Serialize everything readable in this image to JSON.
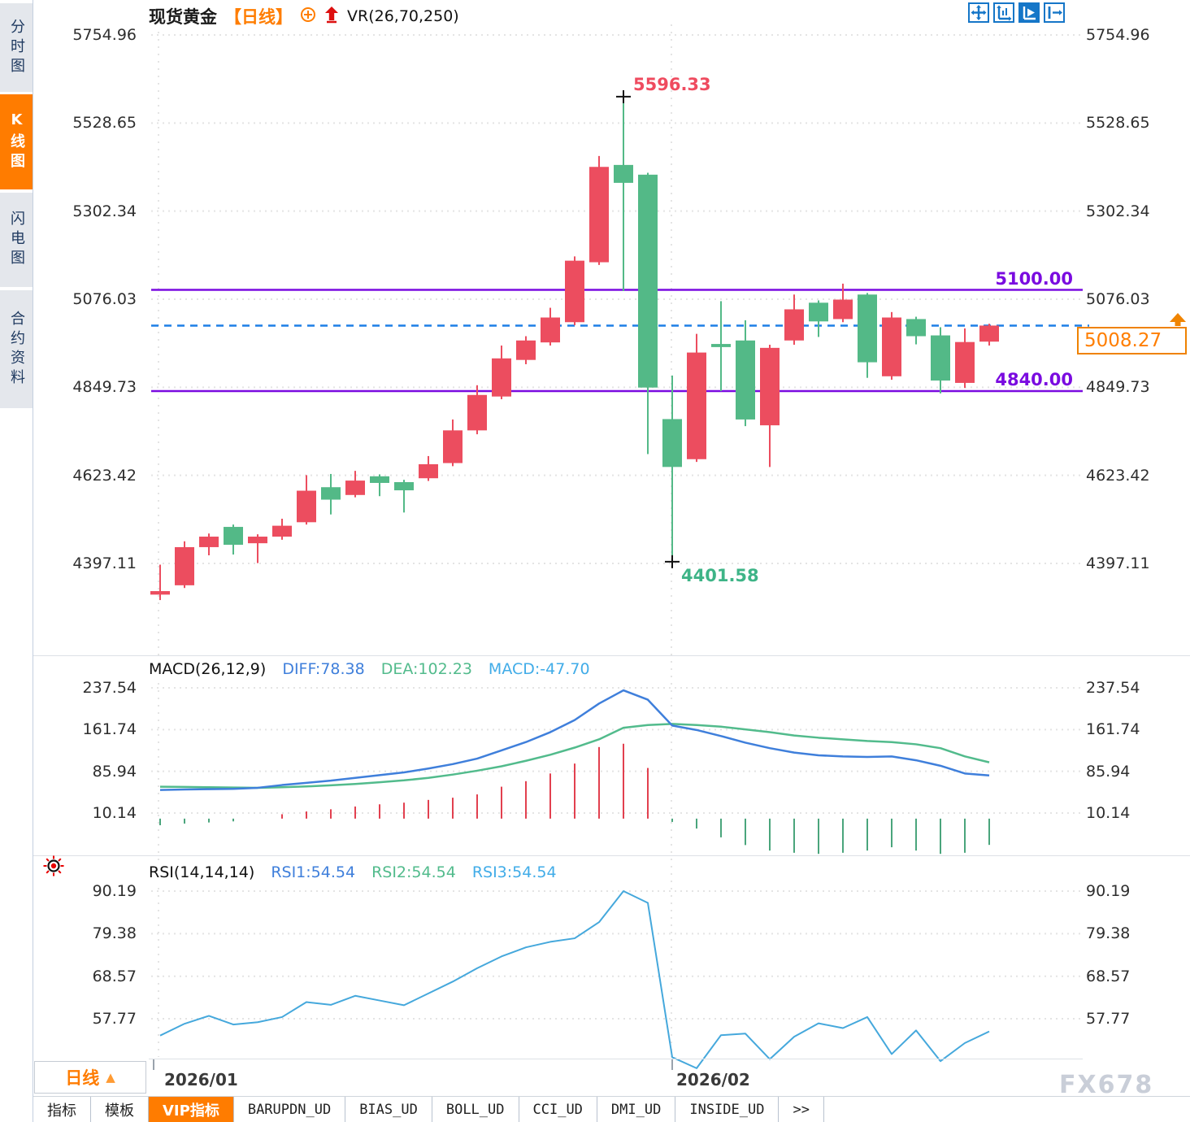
{
  "colors": {
    "up": "#ec4d5f",
    "down": "#53b987",
    "purple_line": "#7a0be0",
    "last_price_dash": "#1d7fe6",
    "diff_line": "#3f7fdb",
    "dea_line": "#52bb8c",
    "rsi_line": "#45a8dc",
    "hist_up": "#e2404f",
    "hist_down": "#4aa57c",
    "accent_orange": "#ff7c00",
    "icon_blue": "#1576c8",
    "grid": "#e4e4e4"
  },
  "sidebar": {
    "items": [
      {
        "label": "分时图",
        "active": false
      },
      {
        "label": "K线图",
        "active": true
      },
      {
        "label": "闪电图",
        "active": false
      },
      {
        "label": "合约资料",
        "active": false
      }
    ]
  },
  "header": {
    "symbol": "现货黄金",
    "period_tag": "【日线】",
    "add_icon": "add-indicator-icon",
    "trend_icon": "red-up-arrow-icon",
    "indicator": "VR(26,70,250)",
    "layout_icons": [
      "pan-icon",
      "axis-scale-icon",
      "axis-play-icon",
      "exit-chart-icon"
    ]
  },
  "chart_data": [
    {
      "type": "candlestick",
      "title": "现货黄金 日线",
      "y_ticks": [
        "5754.96",
        "5528.65",
        "5302.34",
        "5076.03",
        "4849.73",
        "4623.42",
        "4397.11"
      ],
      "y_top": 5754.96,
      "y_bottom": 4397.11,
      "x_labels": [
        "2026/01",
        "2026/02"
      ],
      "candles": [
        [
          4317,
          4394,
          4303,
          4326
        ],
        [
          4341,
          4454,
          4334,
          4439
        ],
        [
          4439,
          4474,
          4418,
          4466
        ],
        [
          4491,
          4497,
          4420,
          4445
        ],
        [
          4449,
          4472,
          4398,
          4466
        ],
        [
          4466,
          4512,
          4458,
          4494
        ],
        [
          4503,
          4624,
          4497,
          4584
        ],
        [
          4593,
          4627,
          4523,
          4561
        ],
        [
          4573,
          4635,
          4567,
          4610
        ],
        [
          4621,
          4626,
          4570,
          4604
        ],
        [
          4606,
          4612,
          4528,
          4585
        ],
        [
          4616,
          4673,
          4609,
          4652
        ],
        [
          4655,
          4767,
          4647,
          4739
        ],
        [
          4739,
          4855,
          4729,
          4830
        ],
        [
          4826,
          4957,
          4819,
          4924
        ],
        [
          4920,
          4981,
          4909,
          4970
        ],
        [
          4965,
          5054,
          4957,
          5029
        ],
        [
          5017,
          5186,
          5009,
          5175
        ],
        [
          5171,
          5444,
          5164,
          5416
        ],
        [
          5421,
          5596.33,
          5097,
          5375
        ],
        [
          5396,
          5401,
          4678,
          4849
        ],
        [
          4768,
          4880,
          4401.58,
          4645
        ],
        [
          4665,
          4987,
          4658,
          4939
        ],
        [
          4961,
          5071,
          4840,
          4953
        ],
        [
          4970,
          5022,
          4750,
          4767
        ],
        [
          4752,
          4959,
          4645,
          4951
        ],
        [
          4970,
          5088,
          4959,
          5050
        ],
        [
          5067,
          5073,
          4979,
          5019
        ],
        [
          5025,
          5116,
          5017,
          5075
        ],
        [
          5088,
          5092,
          4874,
          4914
        ],
        [
          4878,
          5043,
          4869,
          5029
        ],
        [
          5025,
          5031,
          4960,
          4981
        ],
        [
          4983,
          5004,
          4834,
          4867
        ],
        [
          4861,
          5001,
          4848,
          4966
        ],
        [
          4967,
          5013,
          4957,
          5008.27
        ]
      ],
      "high_marker": {
        "index": 19,
        "label": "5596.33"
      },
      "low_marker": {
        "index": 21,
        "label": "4401.58"
      },
      "hlines": [
        {
          "value": 5100.0,
          "label": "5100.00"
        },
        {
          "value": 4840.0,
          "label": "4840.00"
        }
      ],
      "last_price": {
        "value": 5008.27,
        "label": "5008.27"
      }
    },
    {
      "type": "macd",
      "params": "MACD(26,12,9)",
      "legend": {
        "diff": "DIFF:78.38",
        "dea": "DEA:102.23",
        "macd": "MACD:-47.70"
      },
      "y_ticks": [
        "237.54",
        "161.74",
        "85.94",
        "10.14"
      ],
      "y_tick_values": [
        237.54,
        161.74,
        85.94,
        10.14
      ],
      "diff": [
        52,
        53,
        53.5,
        54,
        56,
        61,
        65,
        69,
        74,
        79,
        84,
        91,
        99,
        109,
        124,
        139,
        157,
        179,
        209,
        233,
        216,
        169,
        161,
        150,
        138,
        128,
        120,
        115,
        113,
        112,
        113,
        106,
        96,
        82,
        78.38
      ],
      "dea": [
        58,
        57.5,
        57,
        56.5,
        56,
        57,
        58.5,
        60.5,
        63,
        66,
        69.5,
        74,
        80,
        87,
        95,
        105,
        116,
        129,
        144,
        165,
        170,
        172,
        170,
        167,
        162,
        157,
        151,
        147,
        144,
        141,
        139,
        135,
        128,
        113,
        102.23
      ],
      "hist": [
        -12,
        -9,
        -7,
        -5,
        0,
        8,
        13,
        17,
        22,
        26,
        29,
        34,
        38,
        44,
        58,
        68,
        82,
        100,
        130,
        136,
        92,
        -6,
        -18,
        -34,
        -48,
        -58,
        -62,
        -64,
        -62,
        -58,
        -52,
        -58,
        -64,
        -62,
        -47.7
      ]
    },
    {
      "type": "line",
      "params": "RSI(14,14,14)",
      "legend": {
        "rsi1": "RSI1:54.54",
        "rsi2": "RSI2:54.54",
        "rsi3": "RSI3:54.54"
      },
      "y_ticks": [
        "90.19",
        "79.38",
        "68.57",
        "57.77"
      ],
      "y_tick_values": [
        90.19,
        79.38,
        68.57,
        57.77
      ],
      "rsi": [
        53.5,
        56.5,
        58.5,
        56.3,
        56.9,
        58.2,
        62,
        61.3,
        63.6,
        62.4,
        61.2,
        64.2,
        67.2,
        70.6,
        73.6,
        75.9,
        77.3,
        78.2,
        82.3,
        90.19,
        87.2,
        48,
        45.2,
        53.6,
        54,
        47.5,
        53.2,
        56.6,
        55.4,
        58.2,
        48.8,
        54.8,
        47,
        51.6,
        54.54
      ]
    }
  ],
  "footer": {
    "period_button": "日线",
    "period_button_arrow": "▲",
    "x_label_1": "2026/01",
    "x_label_2": "2026/02",
    "watermark": "FX678"
  },
  "bottom_tabs": {
    "items": [
      {
        "label": "指标",
        "active": false,
        "mono": false
      },
      {
        "label": "模板",
        "active": false,
        "mono": false
      },
      {
        "label": "VIP指标",
        "active": true,
        "mono": false
      },
      {
        "label": "BARUPDN_UD",
        "active": false,
        "mono": true
      },
      {
        "label": "BIAS_UD",
        "active": false,
        "mono": true
      },
      {
        "label": "BOLL_UD",
        "active": false,
        "mono": true
      },
      {
        "label": "CCI_UD",
        "active": false,
        "mono": true
      },
      {
        "label": "DMI_UD",
        "active": false,
        "mono": true
      },
      {
        "label": "INSIDE_UD",
        "active": false,
        "mono": true
      },
      {
        "label": ">>",
        "active": false,
        "mono": true
      }
    ]
  }
}
